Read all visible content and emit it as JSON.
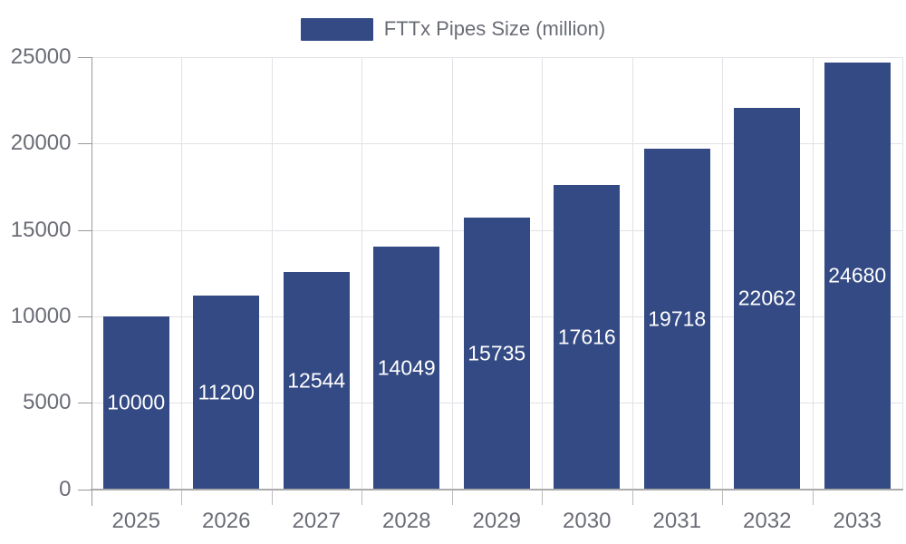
{
  "legend": {
    "label": "FTTx Pipes Size (million)",
    "swatch_color": "#344a84"
  },
  "chart_data": {
    "type": "bar",
    "title": "FTTx Pipes Size (million)",
    "categories": [
      "2025",
      "2026",
      "2027",
      "2028",
      "2029",
      "2030",
      "2031",
      "2032",
      "2033"
    ],
    "series": [
      {
        "name": "FTTx Pipes Size (million)",
        "values": [
          10000,
          11200,
          12544,
          14049,
          15735,
          17616,
          19718,
          22062,
          24680
        ]
      }
    ],
    "data_labels": [
      "10000",
      "11200",
      "12544",
      "14049",
      "15735",
      "17616",
      "19718",
      "22062",
      "24680"
    ],
    "xlabel": "",
    "ylabel": "",
    "ylim": [
      0,
      25000
    ],
    "y_ticks": [
      0,
      5000,
      10000,
      15000,
      20000,
      25000
    ],
    "y_tick_labels": [
      "0",
      "5000",
      "10000",
      "15000",
      "20000",
      "25000"
    ],
    "grid": true,
    "legend_position": "top",
    "colors": {
      "bar": "#344a84",
      "value_label": "#ffffff",
      "axis_label": "#6b6d76",
      "axis_line": "#999999",
      "grid_line": "#e2e2e7"
    }
  }
}
